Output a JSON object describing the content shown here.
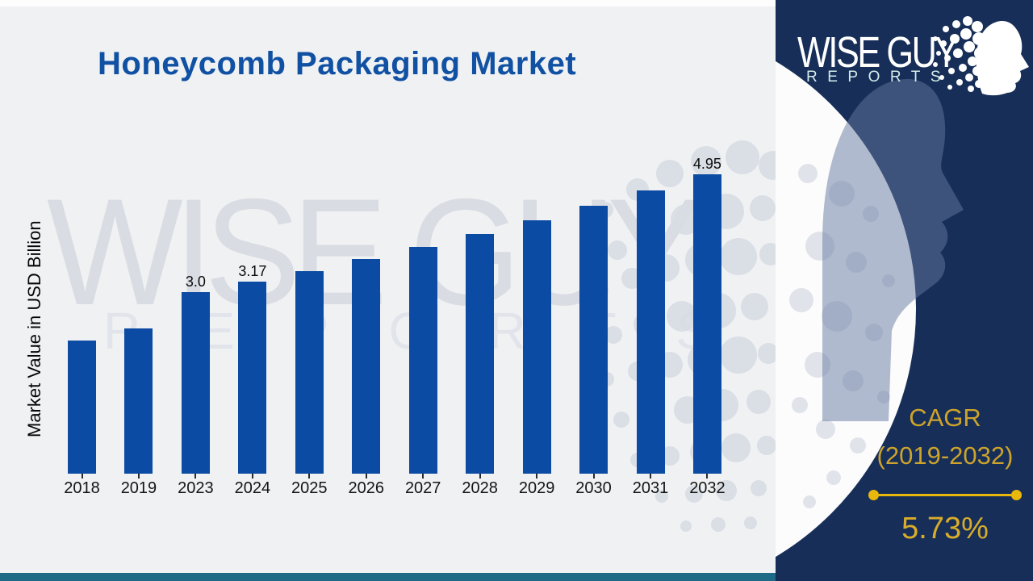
{
  "header": {
    "title": "Honeycomb Packaging Market",
    "title_color": "#1151a3"
  },
  "watermark": {
    "line1": "WISE GUY",
    "line2": "REPORTS",
    "color1": "#d9dce2",
    "color2": "#e1e4ea"
  },
  "logo": {
    "line1": "WISE GUY",
    "line2": "REPORTS"
  },
  "panel": {
    "navy": "#162e58",
    "circle_color": "#fcfcfd",
    "cagr_label": "CAGR",
    "cagr_range": "(2019-2032)",
    "cagr_value": "5.73%",
    "gold_text": "#cda32b",
    "gold_value": "#d9ad2b",
    "gold_line": "#e9b80d"
  },
  "accents": {
    "background": "#f0f1f3",
    "teal_bar": "#1d6b86",
    "top_strip": "#fdfdfe"
  },
  "chart_data": {
    "type": "bar",
    "title": "Honeycomb Packaging Market",
    "y_axis_label": "Market Value in USD Billion",
    "x_axis_label": "",
    "units": "USD Billion",
    "categories": [
      "2018",
      "2019",
      "2023",
      "2024",
      "2025",
      "2026",
      "2027",
      "2028",
      "2029",
      "2030",
      "2031",
      "2032"
    ],
    "values": [
      2.2,
      2.4,
      3.0,
      3.17,
      3.35,
      3.54,
      3.75,
      3.96,
      4.19,
      4.43,
      4.68,
      4.95
    ],
    "data_labels": {
      "2023": "3.0",
      "2024": "3.17",
      "2032": "4.95"
    },
    "bar_color": "#0c4ba3",
    "ylim": [
      0,
      5.7
    ],
    "grid": false,
    "legend": null,
    "cagr_percent": 5.73
  }
}
